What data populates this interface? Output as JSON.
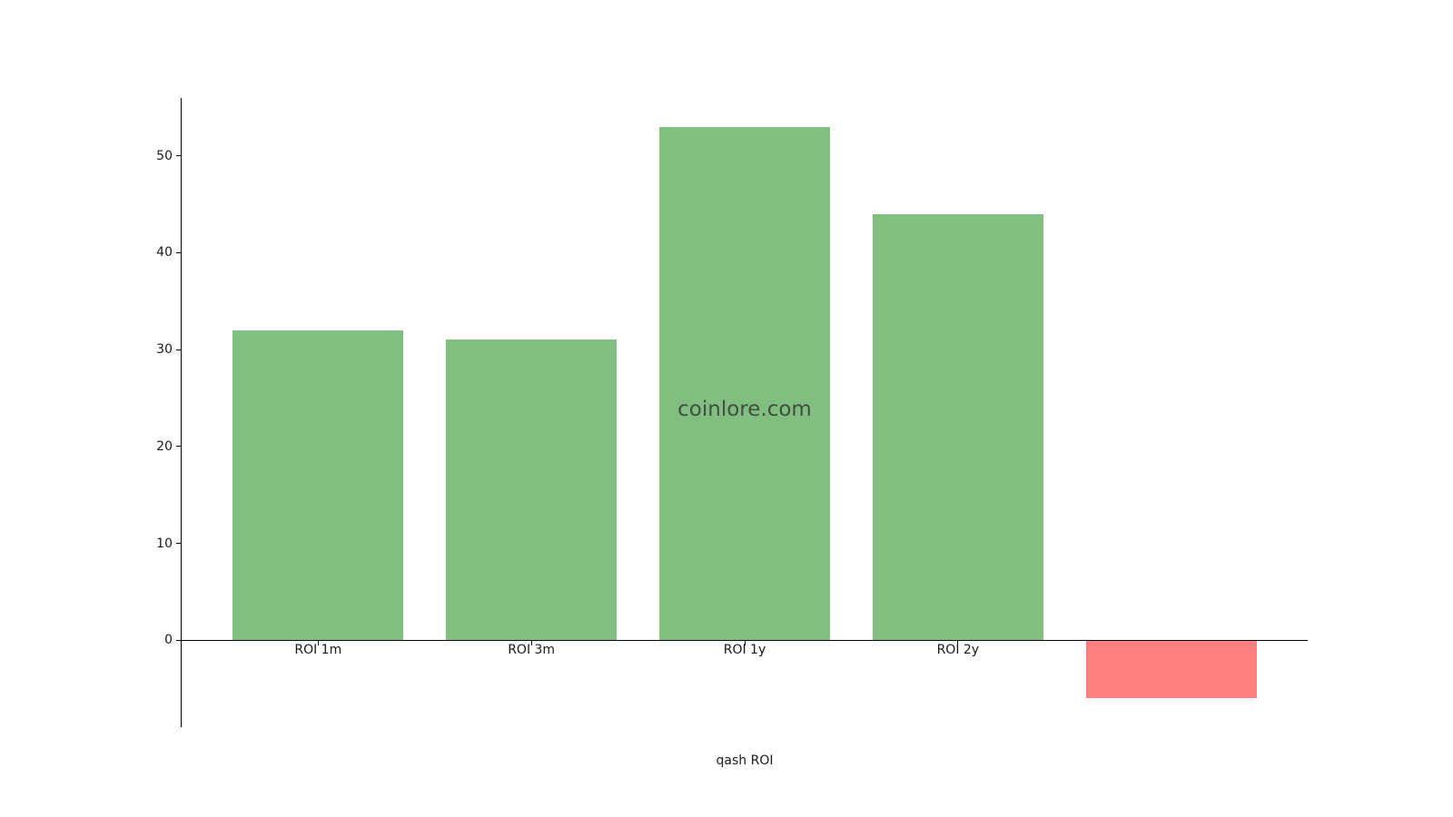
{
  "chart_data": {
    "type": "bar",
    "title": "",
    "xlabel": "qash ROI",
    "ylabel": "",
    "categories": [
      "ROI 1m",
      "ROI 3m",
      "ROI 1y",
      "ROI 2y",
      ""
    ],
    "values": [
      32,
      31,
      53,
      44,
      -6
    ],
    "yticks": [
      0,
      10,
      20,
      30,
      40,
      50
    ],
    "ylim": [
      -8.95,
      55.95
    ],
    "xlim": [
      -0.64,
      4.64
    ],
    "bar_width_units": 0.8,
    "grid": false,
    "legend": "none",
    "watermark": "coinlore.com",
    "colors": {
      "positive_bar": "#80bf80",
      "negative_bar": "#ff8080",
      "axis": "#000000",
      "tick_text": "#1a1a1a",
      "watermark_text": "#333333",
      "background": "#ffffff"
    }
  }
}
